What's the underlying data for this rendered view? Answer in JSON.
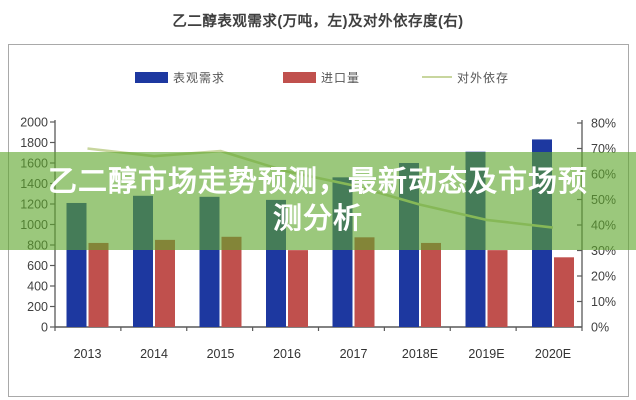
{
  "title": "乙二醇表观需求(万吨，左)及对外依存度(右)",
  "overlay": {
    "line1": "乙二醇市场走势预测，最新动态及市场预",
    "line2": "测分析",
    "bg_color": "rgba(94,166,44,0.62)",
    "text_color": "#ffffff"
  },
  "legend": [
    {
      "key": "demand",
      "label": "表观需求",
      "color": "#1d38a0",
      "type": "bar"
    },
    {
      "key": "imports",
      "label": "进口量",
      "color": "#c0504d",
      "type": "bar"
    },
    {
      "key": "dependency",
      "label": "对外依存",
      "color": "#c8d69e",
      "type": "line"
    }
  ],
  "chart_data": {
    "type": "bar",
    "subtype": "grouped-bars-with-line",
    "categories": [
      "2013",
      "2014",
      "2015",
      "2016",
      "2017",
      "2018E",
      "2019E",
      "2020E"
    ],
    "series": [
      {
        "key": "demand",
        "name": "表观需求",
        "type": "bar",
        "axis": "left",
        "color": "#1d38a0",
        "values": [
          1210,
          1280,
          1270,
          1240,
          1460,
          1600,
          1710,
          1830
        ]
      },
      {
        "key": "imports",
        "name": "进口量",
        "type": "bar",
        "axis": "left",
        "color": "#c0504d",
        "values": [
          820,
          850,
          880,
          750,
          875,
          820,
          750,
          680
        ]
      },
      {
        "key": "dependency",
        "name": "对外依存",
        "type": "line",
        "axis": "right",
        "color": "#c8d69e",
        "values": [
          70,
          67,
          69,
          61,
          55.5,
          48,
          42,
          39
        ]
      }
    ],
    "title": "乙二醇表观需求(万吨，左)及对外依存度(右)",
    "xlabel": "",
    "ylabel_left": "万吨",
    "ylabel_right": "%",
    "left_axis": {
      "min": 0,
      "max": 2000,
      "step": 200,
      "labels": [
        "0",
        "200",
        "400",
        "600",
        "800",
        "1000",
        "1200",
        "1400",
        "1600",
        "1800",
        "2000"
      ]
    },
    "right_axis": {
      "min": 0,
      "max": 80,
      "step": 10,
      "labels": [
        "0%",
        "10%",
        "20%",
        "30%",
        "40%",
        "50%",
        "60%",
        "70%",
        "80%"
      ]
    },
    "grid": false,
    "legend_position": "top"
  },
  "colors": {
    "axis_line": "#595959",
    "tick_text": "#404040",
    "year_text": "#333333"
  }
}
